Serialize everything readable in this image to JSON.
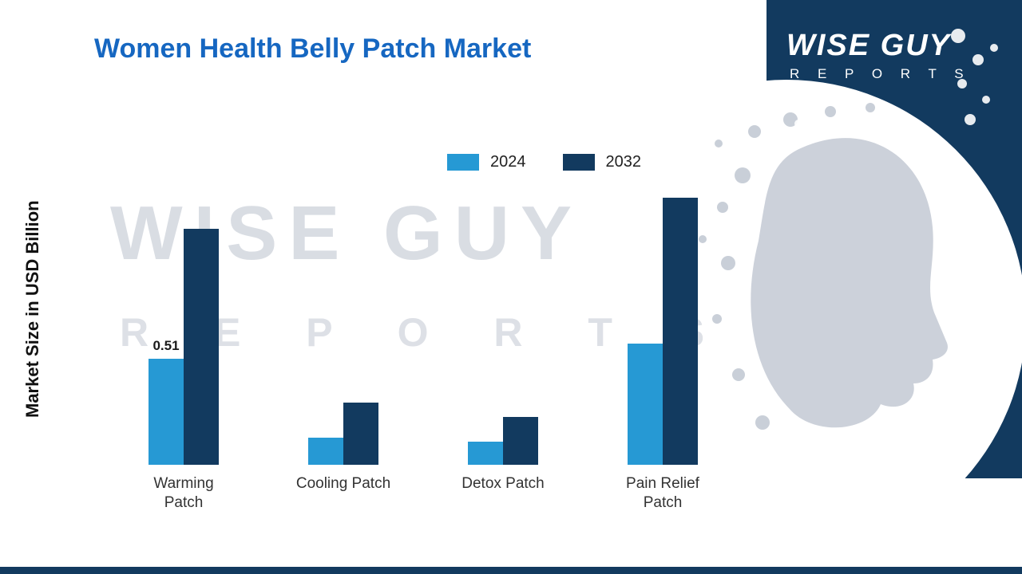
{
  "title": "Women Health Belly Patch Market",
  "logo": {
    "line1": "WISE GUY",
    "line2": "R E P O R T S"
  },
  "watermark": {
    "line1": "WISE GUY",
    "line2": "R E P O R T S"
  },
  "y_axis_label": "Market Size in USD Billion",
  "colors": {
    "accent_blue": "#2699d4",
    "navy": "#123a5f",
    "title_blue": "#1667c1",
    "watermark_gray": "#d9dde3"
  },
  "chart_data": {
    "type": "bar",
    "title": "Women Health Belly Patch Market",
    "categories": [
      "Warming Patch",
      "Cooling Patch",
      "Detox Patch",
      "Pain Relief Patch"
    ],
    "series": [
      {
        "name": "2024",
        "color": "#2699d4",
        "values": [
          0.51,
          0.13,
          0.11,
          0.58
        ]
      },
      {
        "name": "2032",
        "color": "#123a5f",
        "values": [
          1.13,
          0.3,
          0.23,
          1.28
        ]
      }
    ],
    "annotations": [
      {
        "category_index": 0,
        "series_index": 0,
        "text": "0.51"
      }
    ],
    "xlabel": "",
    "ylabel": "Market Size in USD Billion",
    "ylim": [
      0,
      1.3
    ],
    "grid": false,
    "legend_position": "top",
    "value_axis_ticks_visible": false
  }
}
